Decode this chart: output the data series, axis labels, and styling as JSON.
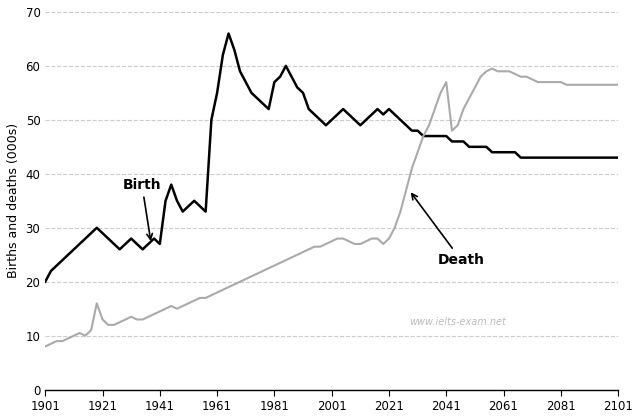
{
  "title": "",
  "ylabel": "Births and deaths (000s)",
  "xlabel": "",
  "xlim": [
    1901,
    2101
  ],
  "ylim": [
    0,
    70
  ],
  "yticks": [
    0,
    10,
    20,
    30,
    40,
    50,
    60,
    70
  ],
  "xticks": [
    1901,
    1921,
    1941,
    1961,
    1981,
    2001,
    2021,
    2041,
    2061,
    2081,
    2101
  ],
  "birth_color": "#000000",
  "death_color": "#aaaaaa",
  "background_color": "#ffffff",
  "grid_color": "#cccccc",
  "watermark": "www.ielts-exam.net",
  "birth_x": [
    1901,
    1903,
    1905,
    1907,
    1909,
    1911,
    1913,
    1915,
    1917,
    1919,
    1921,
    1923,
    1925,
    1927,
    1929,
    1931,
    1933,
    1935,
    1937,
    1939,
    1941,
    1943,
    1945,
    1947,
    1949,
    1951,
    1953,
    1955,
    1957,
    1959,
    1961,
    1963,
    1965,
    1967,
    1969,
    1971,
    1973,
    1975,
    1977,
    1979,
    1981,
    1983,
    1985,
    1987,
    1989,
    1991,
    1993,
    1995,
    1997,
    1999,
    2001,
    2003,
    2005,
    2007,
    2009,
    2011,
    2013,
    2015,
    2017,
    2019,
    2021,
    2023,
    2025,
    2027,
    2029,
    2031,
    2033,
    2035,
    2037,
    2039,
    2041,
    2043,
    2045,
    2047,
    2049,
    2051,
    2053,
    2055,
    2057,
    2059,
    2061,
    2063,
    2065,
    2067,
    2069,
    2071,
    2073,
    2075,
    2077,
    2079,
    2081,
    2083,
    2085,
    2087,
    2089,
    2091,
    2093,
    2095,
    2097,
    2099,
    2101
  ],
  "birth_y": [
    20,
    22,
    23,
    24,
    25,
    26,
    27,
    28,
    29,
    30,
    29,
    28,
    27,
    26,
    27,
    28,
    27,
    26,
    27,
    28,
    27,
    35,
    38,
    35,
    33,
    34,
    35,
    34,
    33,
    50,
    55,
    62,
    66,
    63,
    59,
    57,
    55,
    54,
    53,
    52,
    57,
    58,
    60,
    58,
    56,
    55,
    52,
    51,
    50,
    49,
    50,
    51,
    52,
    51,
    50,
    49,
    50,
    51,
    52,
    51,
    52,
    51,
    50,
    49,
    48,
    48,
    47,
    47,
    47,
    47,
    47,
    46,
    46,
    46,
    45,
    45,
    45,
    45,
    44,
    44,
    44,
    44,
    44,
    43,
    43,
    43,
    43,
    43,
    43,
    43,
    43,
    43,
    43,
    43,
    43,
    43,
    43,
    43,
    43,
    43,
    43
  ],
  "death_x": [
    1901,
    1903,
    1905,
    1907,
    1909,
    1911,
    1913,
    1915,
    1917,
    1919,
    1921,
    1923,
    1925,
    1927,
    1929,
    1931,
    1933,
    1935,
    1937,
    1939,
    1941,
    1943,
    1945,
    1947,
    1949,
    1951,
    1953,
    1955,
    1957,
    1959,
    1961,
    1963,
    1965,
    1967,
    1969,
    1971,
    1973,
    1975,
    1977,
    1979,
    1981,
    1983,
    1985,
    1987,
    1989,
    1991,
    1993,
    1995,
    1997,
    1999,
    2001,
    2003,
    2005,
    2007,
    2009,
    2011,
    2013,
    2015,
    2017,
    2019,
    2021,
    2023,
    2025,
    2027,
    2029,
    2031,
    2033,
    2035,
    2037,
    2039,
    2041,
    2043,
    2045,
    2047,
    2049,
    2051,
    2053,
    2055,
    2057,
    2059,
    2061,
    2063,
    2065,
    2067,
    2069,
    2071,
    2073,
    2075,
    2077,
    2079,
    2081,
    2083,
    2085,
    2087,
    2089,
    2091,
    2093,
    2095,
    2097,
    2099,
    2101
  ],
  "death_y": [
    8,
    8.5,
    9,
    9,
    9.5,
    10,
    10.5,
    10,
    11,
    16,
    13,
    12,
    12,
    12.5,
    13,
    13.5,
    13,
    13,
    13.5,
    14,
    14.5,
    15,
    15.5,
    15,
    15.5,
    16,
    16.5,
    17,
    17,
    17.5,
    18,
    18.5,
    19,
    19.5,
    20,
    20.5,
    21,
    21.5,
    22,
    22.5,
    23,
    23.5,
    24,
    24.5,
    25,
    25.5,
    26,
    26.5,
    26.5,
    27,
    27.5,
    28,
    28,
    27.5,
    27,
    27,
    27.5,
    28,
    28,
    27,
    28,
    30,
    33,
    37,
    41,
    44,
    47,
    49,
    52,
    55,
    57,
    48,
    49,
    52,
    54,
    56,
    58,
    59,
    59.5,
    59,
    59,
    59,
    58.5,
    58,
    58,
    57.5,
    57,
    57,
    57,
    57,
    57,
    56.5,
    56.5,
    56.5,
    56.5,
    56.5,
    56.5,
    56.5,
    56.5,
    56.5,
    56.5
  ]
}
